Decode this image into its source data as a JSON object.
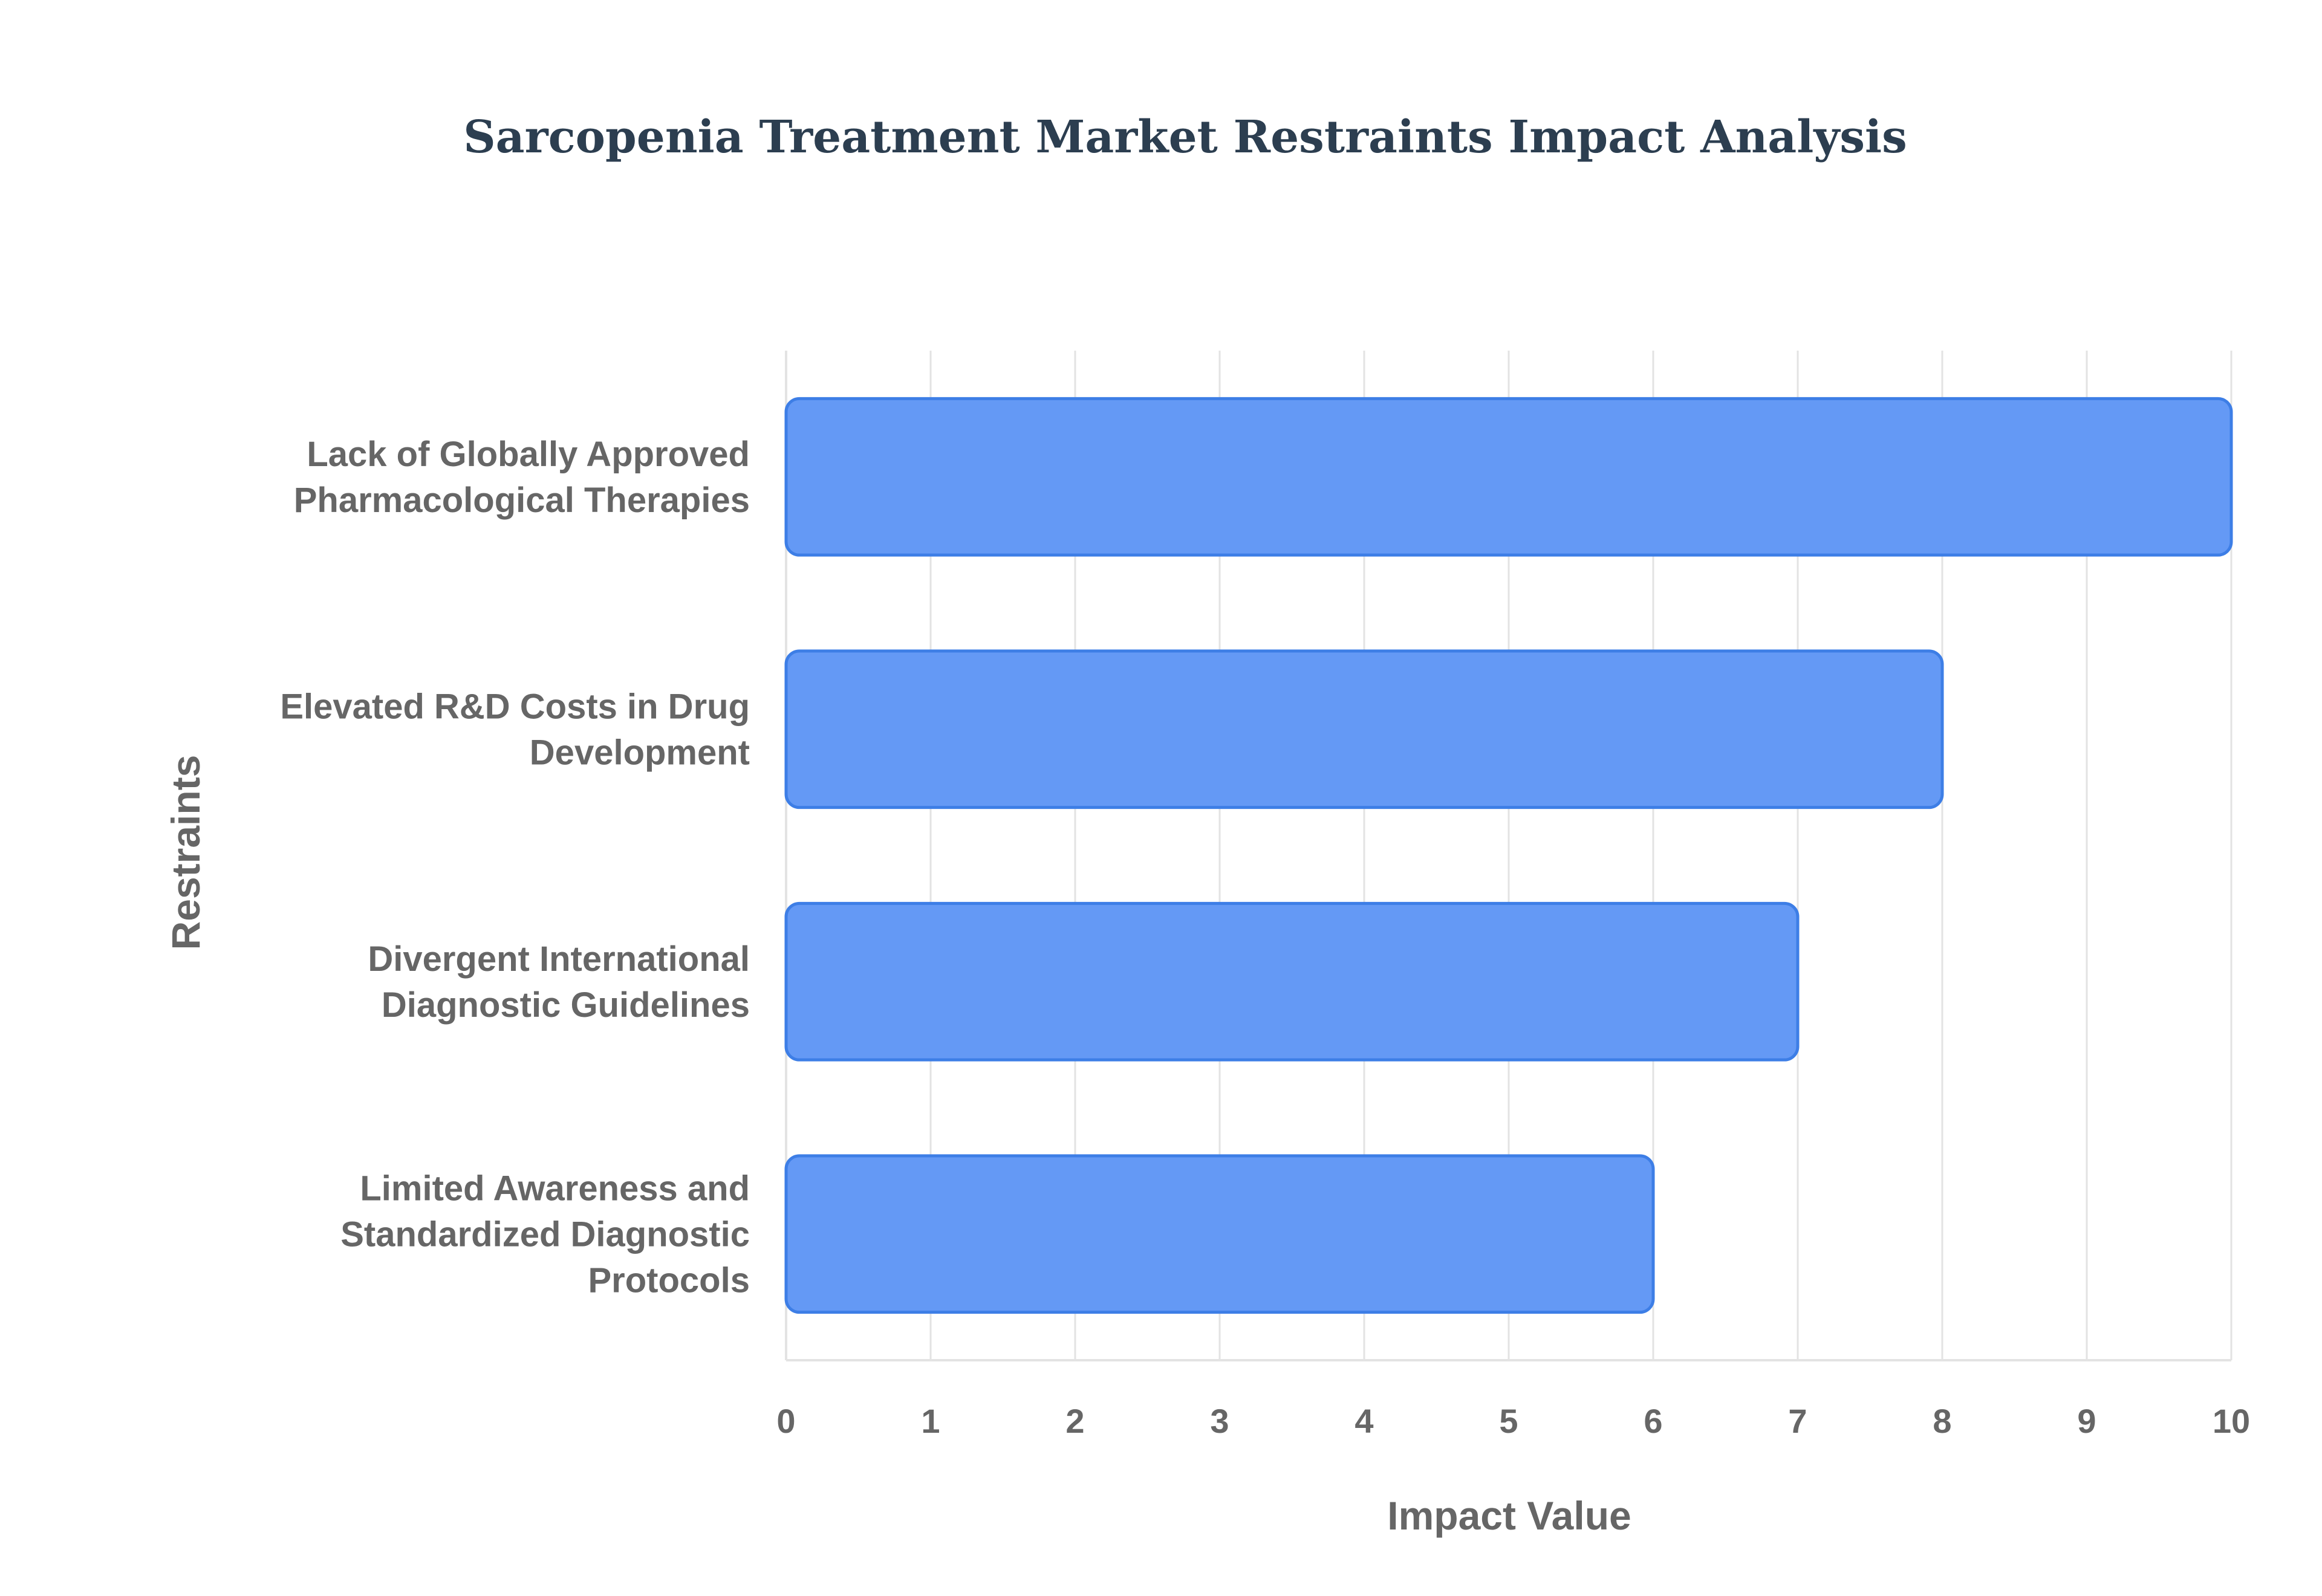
{
  "chart_data": {
    "type": "bar",
    "orientation": "horizontal",
    "title": "Sarcopenia Treatment Market Restraints Impact Analysis",
    "xlabel": "Impact Value",
    "ylabel": "Restraints",
    "categories": [
      "Lack of Globally Approved Pharmacological Therapies",
      "Elevated R&D Costs in Drug Development",
      "Divergent International Diagnostic Guidelines",
      "Limited Awareness and Standardized Diagnostic Protocols"
    ],
    "category_lines": [
      [
        "Lack of Globally Approved",
        "Pharmacological Therapies"
      ],
      [
        "Elevated R&D Costs in Drug",
        "Development"
      ],
      [
        "Divergent International",
        "Diagnostic Guidelines"
      ],
      [
        "Limited Awareness and",
        "Standardized Diagnostic",
        "Protocols"
      ]
    ],
    "values": [
      10,
      8,
      7,
      6
    ],
    "xlim": [
      0,
      10
    ],
    "xticks": [
      "0",
      "1",
      "2",
      "3",
      "4",
      "5",
      "6",
      "7",
      "8",
      "9",
      "10"
    ],
    "grid": true,
    "legend": "none",
    "colors": {
      "bar_fill": "#6499f5",
      "bar_stroke": "#3d7ee6",
      "grid": "#e3e3e3",
      "text": "#666666",
      "title": "#2c3e50"
    }
  }
}
